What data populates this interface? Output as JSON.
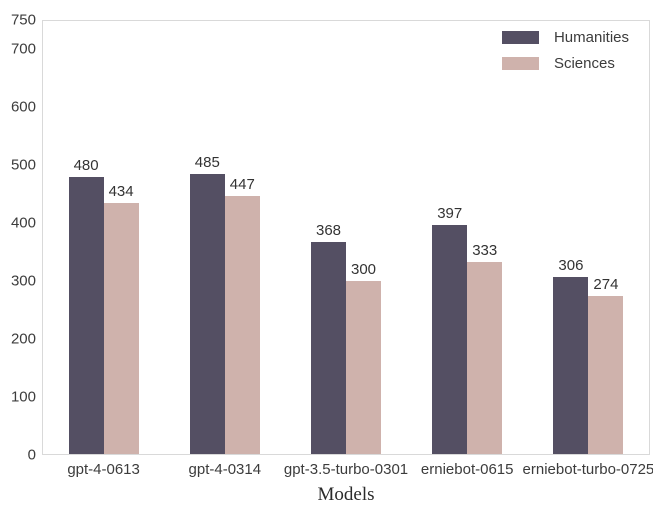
{
  "figure": {
    "background": "#ffffff",
    "spine_color": "#d9d9d9",
    "tick_text_color": "#3c3c3c",
    "value_label_color": "#333333"
  },
  "chart_data": {
    "type": "bar",
    "title": "",
    "xlabel": "Models",
    "ylabel": "",
    "categories": [
      "gpt-4-0613",
      "gpt-4-0314",
      "gpt-3.5-turbo-0301",
      "erniebot-0615",
      "erniebot-turbo-0725"
    ],
    "series": [
      {
        "name": "Humanities",
        "color": "#544f63",
        "values": [
          480,
          485,
          368,
          397,
          306
        ]
      },
      {
        "name": "Sciences",
        "color": "#cfb2ac",
        "values": [
          434,
          447,
          300,
          333,
          274
        ]
      }
    ],
    "ylim": [
      0,
      750
    ],
    "yticks": [
      0,
      100,
      200,
      300,
      400,
      500,
      600,
      700,
      750
    ],
    "grid": false,
    "bar_value_labels": true,
    "legend_position": "upper-right"
  }
}
